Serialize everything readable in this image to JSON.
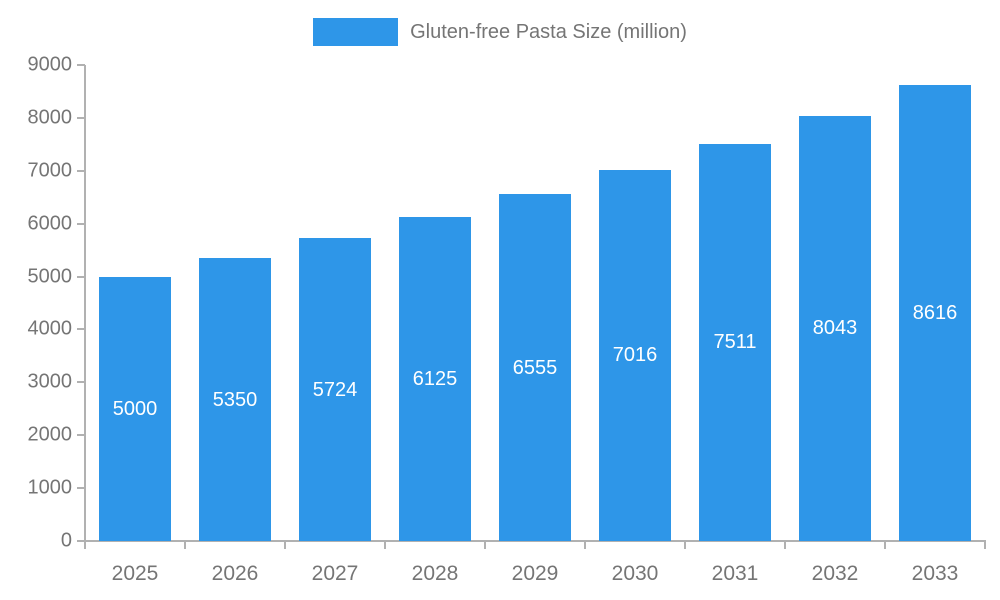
{
  "colors": {
    "bar": "#2E96E8",
    "axis": "#b1b1b1",
    "axis_text": "#757575",
    "value_label": "#ffffff",
    "background": "#ffffff"
  },
  "legend": {
    "label": "Gluten-free Pasta Size (million)"
  },
  "chart_data": {
    "type": "bar",
    "title": "Gluten-free Pasta Size (million)",
    "categories": [
      "2025",
      "2026",
      "2027",
      "2028",
      "2029",
      "2030",
      "2031",
      "2032",
      "2033"
    ],
    "values": [
      5000,
      5350,
      5724,
      6125,
      6555,
      7016,
      7511,
      8043,
      8616
    ],
    "xlabel": "",
    "ylabel": "",
    "ylim": [
      0,
      9000
    ],
    "ytick_step": 1000,
    "ytick_labels": [
      "0",
      "1000",
      "2000",
      "3000",
      "4000",
      "5000",
      "6000",
      "7000",
      "8000",
      "9000"
    ],
    "grid": false,
    "legend_position": "top",
    "value_labels": "inside-center",
    "bar_color": "#2E96E8"
  }
}
